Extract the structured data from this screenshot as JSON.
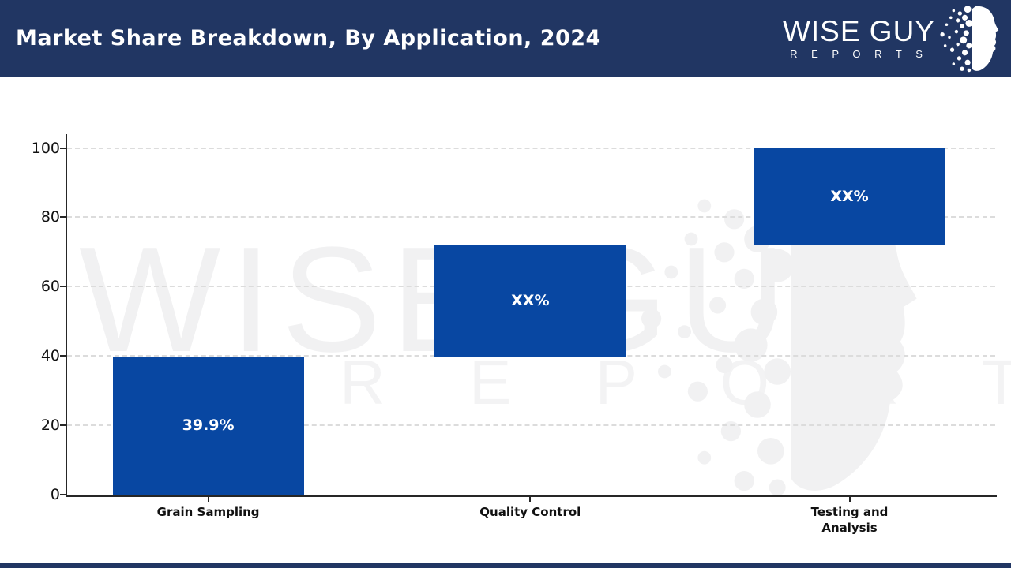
{
  "header": {
    "title": "Market Share Breakdown, By Application, 2024",
    "bg_color": "#213663",
    "logo": {
      "line1": "WISE GUY",
      "line2": "R E P O R T S"
    }
  },
  "watermark": {
    "line1": "WISE GUY",
    "line2": "R E P O R T S"
  },
  "chart_data": {
    "type": "bar",
    "subtype": "waterfall",
    "title": "Market Share Breakdown, By Application, 2024",
    "categories": [
      "Grain Sampling",
      "Quality Control",
      "Testing and Analysis"
    ],
    "segments": [
      {
        "category": "Grain Sampling",
        "start": 0,
        "end": 39.9,
        "label": "39.9%"
      },
      {
        "category": "Quality Control",
        "start": 39.9,
        "end": 72,
        "label": "XX%"
      },
      {
        "category": "Testing and Analysis",
        "start": 72,
        "end": 100,
        "label": "XX%"
      }
    ],
    "bar_color": "#0847a2",
    "bar_label_color": "#ffffff",
    "yticks": [
      0,
      20,
      40,
      60,
      80,
      100
    ],
    "ylim": [
      0,
      104
    ],
    "xlabel": "",
    "ylabel": "",
    "grid": "dashed-horizontal",
    "legend": "none"
  }
}
